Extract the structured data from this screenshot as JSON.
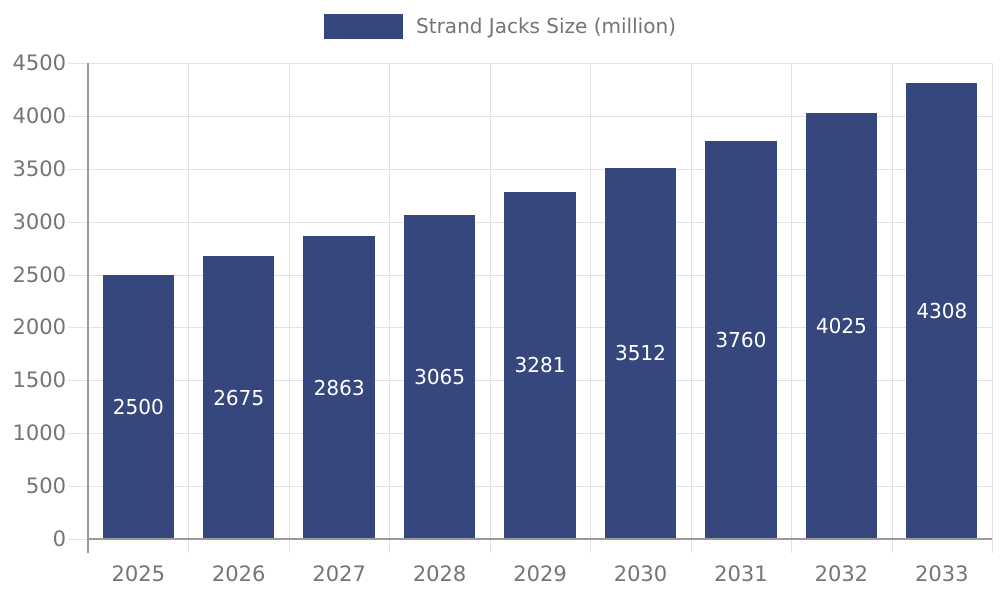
{
  "legend": {
    "label": "Strand Jacks Size (million)"
  },
  "chart_data": {
    "type": "bar",
    "title": "Strand Jacks Size (million)",
    "series_name": "Strand Jacks Size (million)",
    "categories": [
      "2025",
      "2026",
      "2027",
      "2028",
      "2029",
      "2030",
      "2031",
      "2032",
      "2033"
    ],
    "values": [
      2500,
      2675,
      2863,
      3065,
      3281,
      3512,
      3760,
      4025,
      4308
    ],
    "bar_labels": [
      "2500",
      "2675",
      "2863",
      "3065",
      "3281",
      "3512",
      "3760",
      "4025",
      "4308"
    ],
    "xlabel": "",
    "ylabel": "",
    "ylim": [
      0,
      4500
    ],
    "yticks": [
      0,
      500,
      1000,
      1500,
      2000,
      2500,
      3000,
      3500,
      4000,
      4500
    ],
    "grid": true,
    "legend_position": "top-center",
    "colors": {
      "bar": "#36477E",
      "bar_label": "#FFFFFF",
      "axis_text": "#757575",
      "legend_text": "#757575",
      "gridline": "#E2E2E2",
      "axis_line": "#999999",
      "background": "#FFFFFF"
    }
  }
}
